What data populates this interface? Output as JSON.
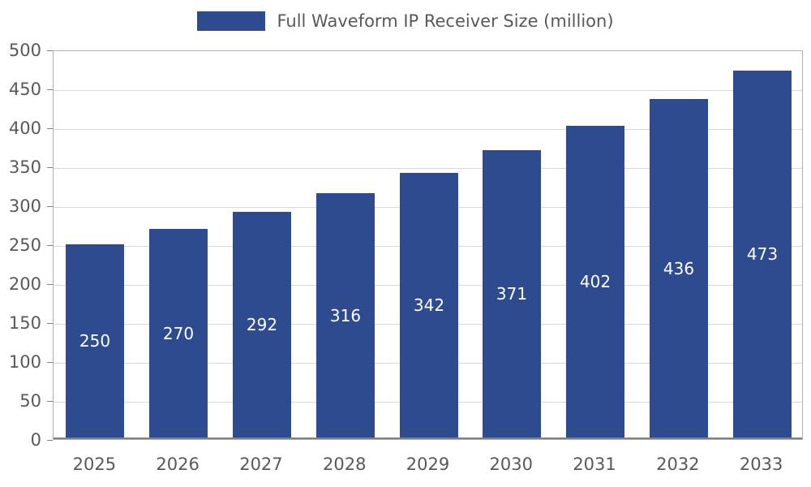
{
  "chart_data": {
    "type": "bar",
    "title": "Full Waveform IP Receiver Size (million)",
    "categories": [
      "2025",
      "2026",
      "2027",
      "2028",
      "2029",
      "2030",
      "2031",
      "2032",
      "2033"
    ],
    "values": [
      250,
      270,
      292,
      316,
      342,
      371,
      402,
      436,
      473
    ],
    "xlabel": "",
    "ylabel": "",
    "ylim": [
      0,
      500
    ],
    "y_tick_step": 50,
    "y_tick_labels": [
      "0",
      "50",
      "100",
      "150",
      "200",
      "250",
      "300",
      "350",
      "400",
      "450",
      "500"
    ],
    "grid": true,
    "legend_position": "top-center",
    "bar_color": "#2f4b8f",
    "value_label_color": "#ffffff",
    "axis_label_color": "#595959"
  }
}
